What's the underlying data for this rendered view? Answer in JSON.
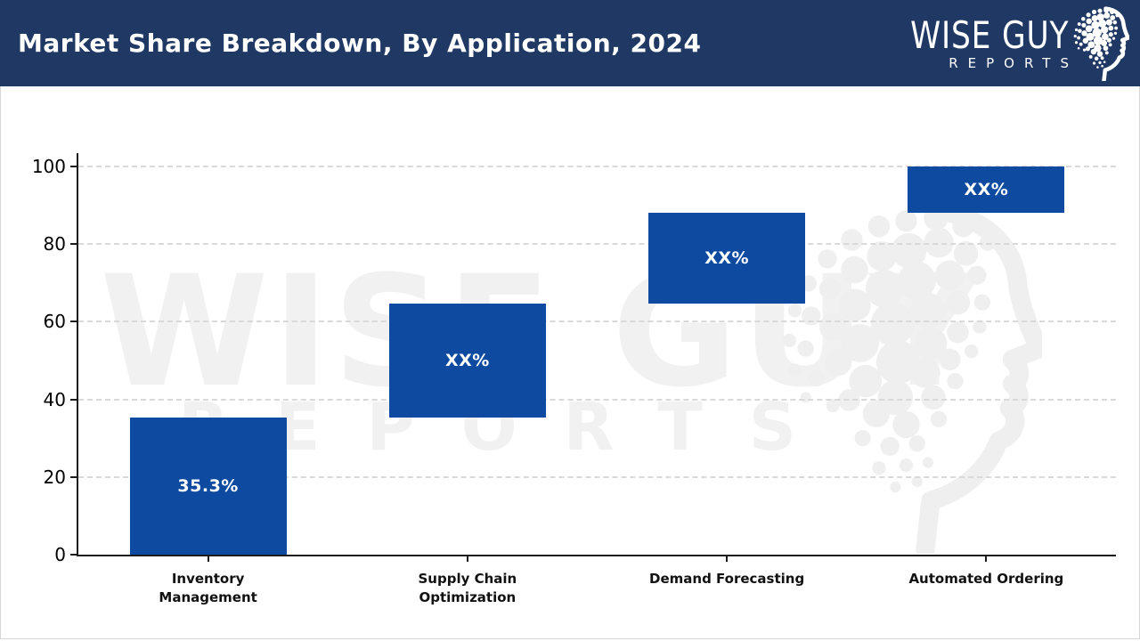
{
  "header": {
    "title": "Market Share Breakdown, By Application, 2024",
    "bg_color": "#203864",
    "logo": {
      "line1": "WISE GUY",
      "line2": "REPORTS"
    }
  },
  "watermark": {
    "line1": "WISE GUY",
    "line2": "REPORTS"
  },
  "chart_data": {
    "type": "bar",
    "subtype": "waterfall",
    "title": "Market Share Breakdown, By Application, 2024",
    "categories": [
      "Inventory Management",
      "Supply Chain Optimization",
      "Demand Forecasting",
      "Automated Ordering"
    ],
    "segments": [
      {
        "category": "Inventory Management",
        "label_lines": [
          "Inventory",
          "Management"
        ],
        "start": 0,
        "end": 35.3,
        "value": 35.3,
        "label": "35.3%"
      },
      {
        "category": "Supply Chain Optimization",
        "label_lines": [
          "Supply Chain",
          "Optimization"
        ],
        "start": 35.3,
        "end": 64.6,
        "value": 29.3,
        "label": "XX%"
      },
      {
        "category": "Demand Forecasting",
        "label_lines": [
          "Demand Forecasting"
        ],
        "start": 64.6,
        "end": 88.1,
        "value": 23.5,
        "label": "XX%"
      },
      {
        "category": "Automated Ordering",
        "label_lines": [
          "Automated Ordering"
        ],
        "start": 88.1,
        "end": 100,
        "value": 11.9,
        "label": "XX%"
      }
    ],
    "y_ticks": [
      0,
      20,
      40,
      60,
      80,
      100
    ],
    "ylim": [
      0,
      103.5
    ],
    "xlabel": "",
    "ylabel": "",
    "grid": "horizontal-dashed",
    "legend": false,
    "bar_color": "#0d4aa0",
    "bar_label_color": "#ffffff",
    "axis_color": "#1c1c1c",
    "gridline_color": "#d9d9d9",
    "tick_label_color": "#000000"
  }
}
